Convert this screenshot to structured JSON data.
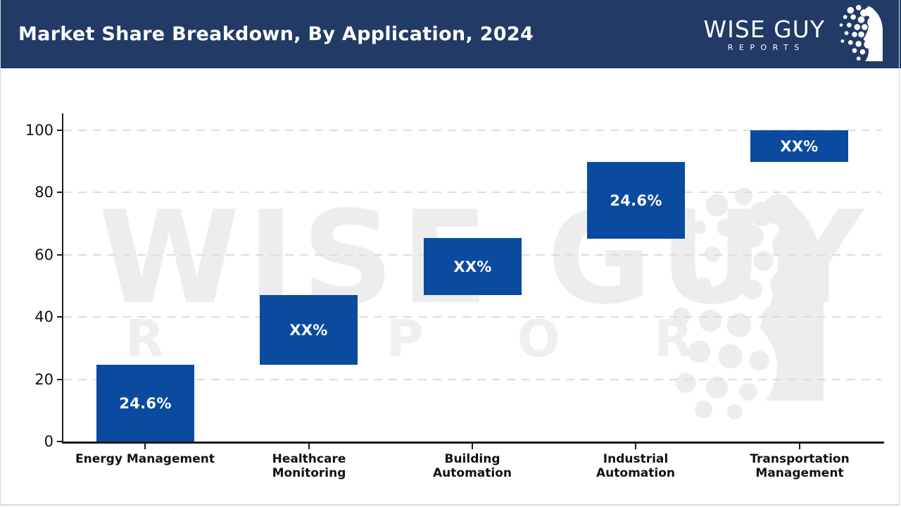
{
  "header": {
    "title": "Market Share Breakdown, By Application, 2024",
    "logo": {
      "line1": "WISE GUY",
      "line2": "REPORTS"
    }
  },
  "watermark": {
    "line1": "WISE GUY",
    "line2": "R E P O R T S"
  },
  "chart_data": {
    "type": "bar",
    "subtype": "waterfall",
    "title": "Market Share Breakdown, By Application, 2024",
    "xlabel": "",
    "ylabel": "",
    "ylim": [
      0,
      100
    ],
    "yticks": [
      0,
      20,
      40,
      60,
      80,
      100
    ],
    "grid": "horizontal-dashed",
    "legend": "none",
    "categories": [
      "Energy Management",
      "Healthcare Monitoring",
      "Building Automation",
      "Industrial Automation",
      "Transportation Management"
    ],
    "category_lines": [
      [
        "Energy Management"
      ],
      [
        "Healthcare",
        "Monitoring"
      ],
      [
        "Building",
        "Automation"
      ],
      [
        "Industrial",
        "Automation"
      ],
      [
        "Transportation",
        "Management"
      ]
    ],
    "series": [
      {
        "category": "Energy Management",
        "start": 0,
        "end": 24.6,
        "label": "24.6%"
      },
      {
        "category": "Healthcare Monitoring",
        "start": 24.6,
        "end": 47.0,
        "label": "XX%"
      },
      {
        "category": "Building Automation",
        "start": 47.0,
        "end": 65.3,
        "label": "XX%"
      },
      {
        "category": "Industrial Automation",
        "start": 65.3,
        "end": 89.9,
        "label": "24.6%"
      },
      {
        "category": "Transportation Management",
        "start": 89.9,
        "end": 100,
        "label": "XX%"
      }
    ],
    "bar_color": "#0a4b9f",
    "bar_label_color": "#ffffff"
  },
  "colors": {
    "header_bg": "#213a66",
    "bar": "#0a4b9f",
    "grid": "#dcdcdc",
    "axis": "#1a1a1a",
    "watermark": "#ededed",
    "frame_border": "#d8d8d8"
  }
}
